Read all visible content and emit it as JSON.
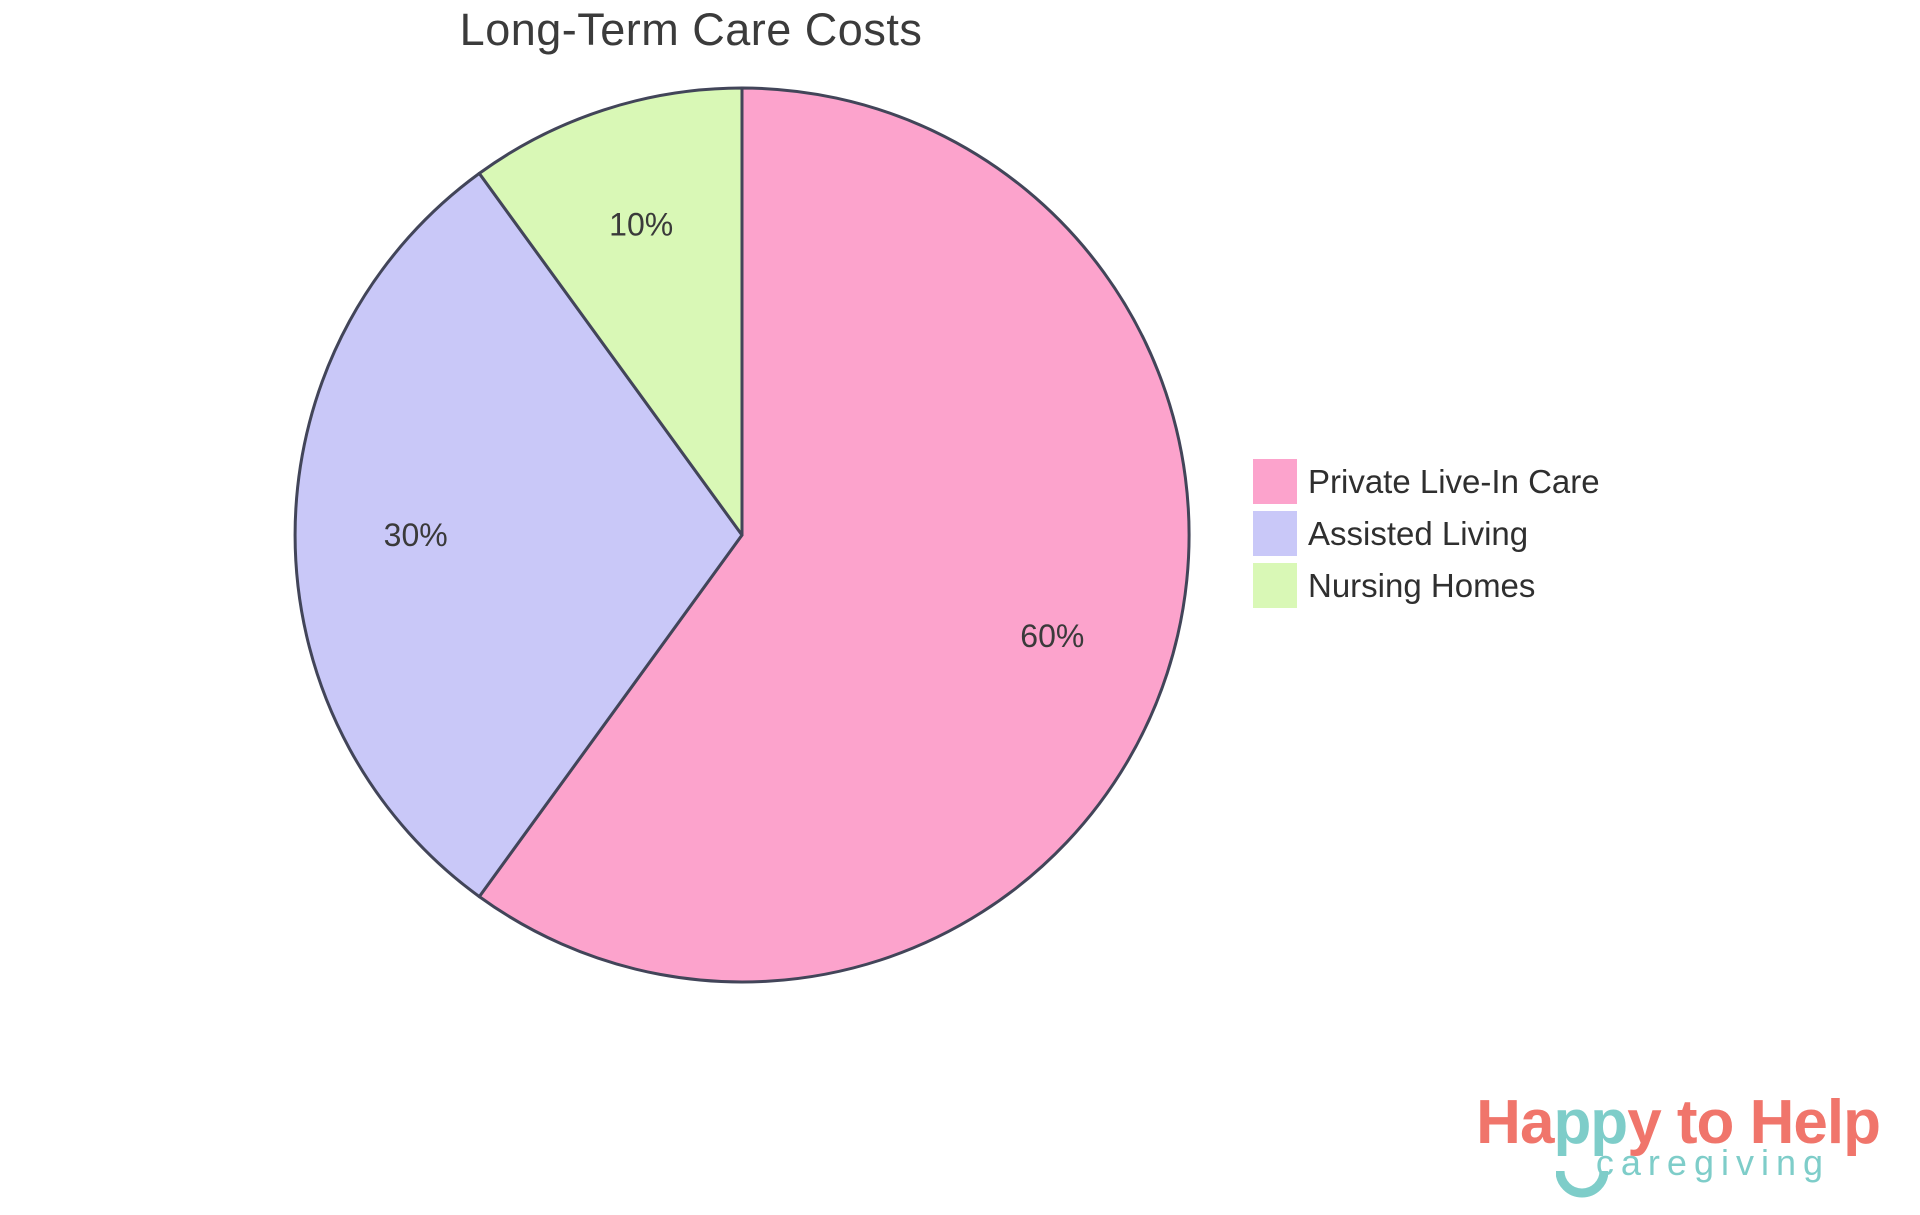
{
  "page": {
    "background_color": "#FFFFFF"
  },
  "chart_data": {
    "type": "pie",
    "title": "Long-Term Care Costs",
    "title_color": "#3B3B3B",
    "categories": [
      "Private Live-In Care",
      "Assisted Living",
      "Nursing Homes"
    ],
    "values": [
      60,
      30,
      10
    ],
    "series": [
      {
        "label": "Private Live-In Care",
        "value": 60,
        "value_label": "60%",
        "color": "#FCA3CC"
      },
      {
        "label": "Assisted Living",
        "value": 30,
        "value_label": "30%",
        "color": "#C9C8F8"
      },
      {
        "label": "Nursing Homes",
        "value": 10,
        "value_label": "10%",
        "color": "#D9F8B6"
      }
    ],
    "start_angle_deg": -90,
    "direction": "clockwise",
    "stroke_color": "#424559",
    "stroke_width": 3,
    "slice_label_color": "#3A3A3A",
    "label_radius_fraction": 0.73,
    "legend_position": "right",
    "grid": false
  },
  "logo": {
    "full_text": "Happy to Help",
    "tagline": "caregiving",
    "coral": "#F0756B",
    "teal": "#7ECDC9",
    "parts": [
      {
        "text": "Ha",
        "color": "#F0756B"
      },
      {
        "text": "pp",
        "color": "#7ECDC9"
      },
      {
        "text": "y",
        "color": "#F0756B"
      },
      {
        "text": " to Help",
        "color": "#F0756B"
      }
    ]
  }
}
